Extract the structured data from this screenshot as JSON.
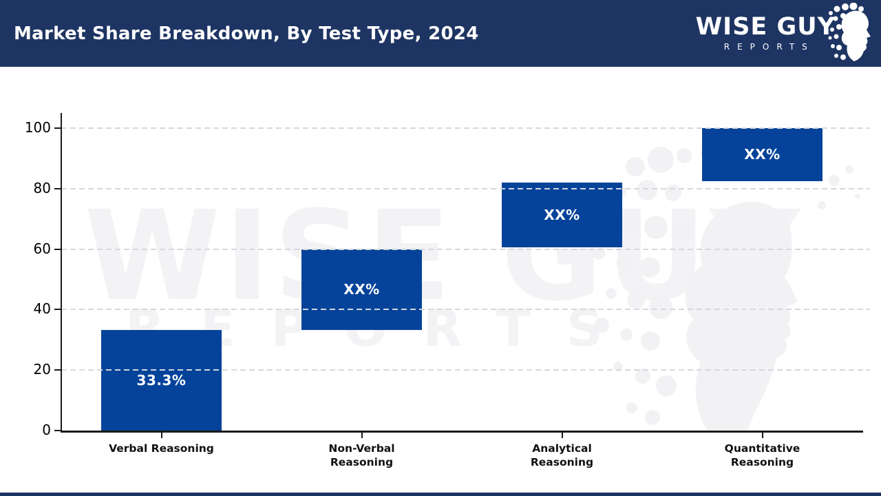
{
  "header": {
    "title": "Market Share Breakdown, By Test Type, 2024",
    "logo": {
      "line1": "WISE GUY",
      "line2": "REPORTS"
    }
  },
  "watermark": {
    "line1": "WISE GUY",
    "line2": "REPORTS"
  },
  "chart_data": {
    "type": "bar",
    "subtype": "floating-waterfall-percent",
    "title": "Market Share Breakdown, By Test Type, 2024",
    "categories": [
      "Verbal Reasoning",
      "Non-Verbal\nReasoning",
      "Analytical\nReasoning",
      "Quantitative\nReasoning"
    ],
    "segments": [
      {
        "category": "Verbal Reasoning",
        "from": 0,
        "to": 33.3,
        "label": "33.3%"
      },
      {
        "category": "Non-Verbal Reasoning",
        "from": 33.3,
        "to": 60,
        "label": "XX%"
      },
      {
        "category": "Analytical Reasoning",
        "from": 60.5,
        "to": 82,
        "label": "XX%"
      },
      {
        "category": "Quantitative Reasoning",
        "from": 82.5,
        "to": 100,
        "label": "XX%"
      }
    ],
    "xlabel": "",
    "ylabel": "",
    "ylim": [
      0,
      100
    ],
    "y_ticks": [
      0,
      20,
      40,
      60,
      80,
      100
    ],
    "grid": "horizontal-dashed",
    "legend": "none",
    "bar_color": "#05439a",
    "bar_label_color": "#ffffff"
  },
  "colors": {
    "header_bg": "#1e3563",
    "footer_bg": "#1e3563",
    "bar_blue": "#05439a",
    "gridline": "#d5d8de",
    "axis": "#1a1a1a",
    "watermark": "#f3f3f5"
  }
}
